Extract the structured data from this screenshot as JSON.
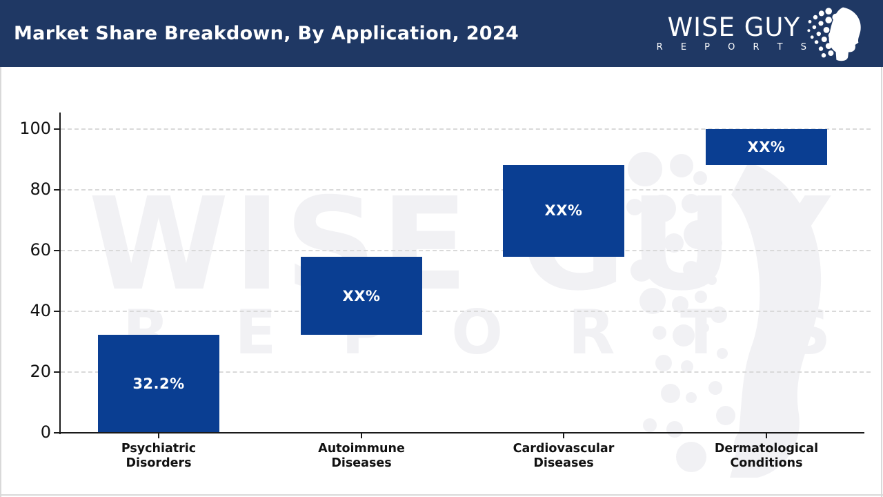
{
  "header": {
    "title": "Market Share Breakdown, By Application, 2024",
    "logo": {
      "name": "WISE GUY",
      "tagline": "R E P O R T S"
    }
  },
  "watermark": {
    "line1": "WISE GUY",
    "line2": "R E P O R T S"
  },
  "chart_data": {
    "type": "bar",
    "variant": "waterfall",
    "title": "Market Share Breakdown, By Application, 2024",
    "categories": [
      "Psychiatric Disorders",
      "Autoimmune Diseases",
      "Cardiovascular Diseases",
      "Dermatological Conditions"
    ],
    "xaxis_display": [
      {
        "line1": "Psychiatric",
        "line2": "Disorders"
      },
      {
        "line1": "Autoimmune",
        "line2": "Diseases"
      },
      {
        "line1": "Cardiovascular",
        "line2": "Diseases"
      },
      {
        "line1": "Dermatological",
        "line2": "Conditions"
      }
    ],
    "segments": [
      {
        "category": "Psychiatric Disorders",
        "start": 0,
        "end": 32.2,
        "value": 32.2,
        "label": "32.2%"
      },
      {
        "category": "Autoimmune Diseases",
        "start": 32.2,
        "end": 58,
        "value": 25.8,
        "label": "XX%"
      },
      {
        "category": "Cardiovascular Diseases",
        "start": 58,
        "end": 88.2,
        "value": 30.2,
        "label": "XX%"
      },
      {
        "category": "Dermatological Conditions",
        "start": 88.2,
        "end": 100,
        "value": 11.8,
        "label": "XX%"
      }
    ],
    "yticks": [
      0,
      20,
      40,
      60,
      80,
      100
    ],
    "ylim": [
      0,
      105
    ],
    "xlabel": "",
    "ylabel": "",
    "legend": "none",
    "grid": "horizontal-dashed",
    "bar_color": "#0a3e92",
    "label_color": "#ffffff",
    "header_color": "#1f3864"
  }
}
